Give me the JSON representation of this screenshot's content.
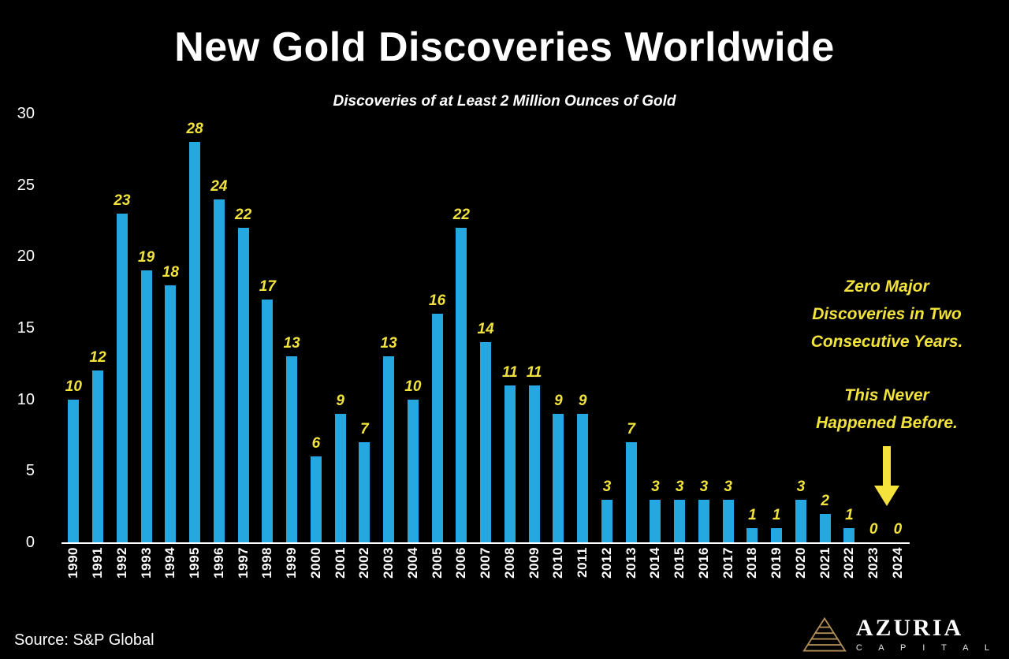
{
  "title": "New Gold Discoveries Worldwide",
  "subtitle": "Discoveries of at Least 2 Million Ounces of Gold",
  "source": "Source: S&P Global",
  "annotation": {
    "block1": [
      "Zero Major",
      "Discoveries in Two",
      "Consecutive Years."
    ],
    "block2": [
      "This Never",
      "Happened Before."
    ],
    "arrow_icon": "down-arrow"
  },
  "logo": {
    "name": "AZURIA",
    "tagline": "C A P I T A L",
    "icon": "pyramid-icon",
    "icon_color": "#B08D57"
  },
  "colors": {
    "background": "#000000",
    "bar": "#25A8E0",
    "data_label": "#F2E33C",
    "axis_text": "#FFFFFF",
    "annotation_text": "#F2E33C",
    "arrow": "#F5E33C"
  },
  "chart_data": {
    "type": "bar",
    "title": "New Gold Discoveries Worldwide",
    "subtitle": "Discoveries of at Least 2 Million Ounces of Gold",
    "categories": [
      "1990",
      "1991",
      "1992",
      "1993",
      "1994",
      "1995",
      "1996",
      "1997",
      "1998",
      "1999",
      "2000",
      "2001",
      "2002",
      "2003",
      "2004",
      "2005",
      "2006",
      "2007",
      "2008",
      "2009",
      "2010",
      "2011",
      "2012",
      "2013",
      "2014",
      "2015",
      "2016",
      "2017",
      "2018",
      "2019",
      "2020",
      "2021",
      "2022",
      "2023",
      "2024"
    ],
    "values": [
      10,
      12,
      23,
      19,
      18,
      28,
      24,
      22,
      17,
      13,
      6,
      9,
      7,
      13,
      10,
      16,
      22,
      14,
      11,
      11,
      9,
      9,
      3,
      7,
      3,
      3,
      3,
      3,
      1,
      1,
      3,
      2,
      1,
      0,
      0
    ],
    "xlabel": "",
    "ylabel": "",
    "ylim": [
      0,
      30
    ],
    "yticks": [
      0,
      5,
      10,
      15,
      20,
      25,
      30
    ],
    "grid": false,
    "legend": false,
    "data_labels": true
  }
}
